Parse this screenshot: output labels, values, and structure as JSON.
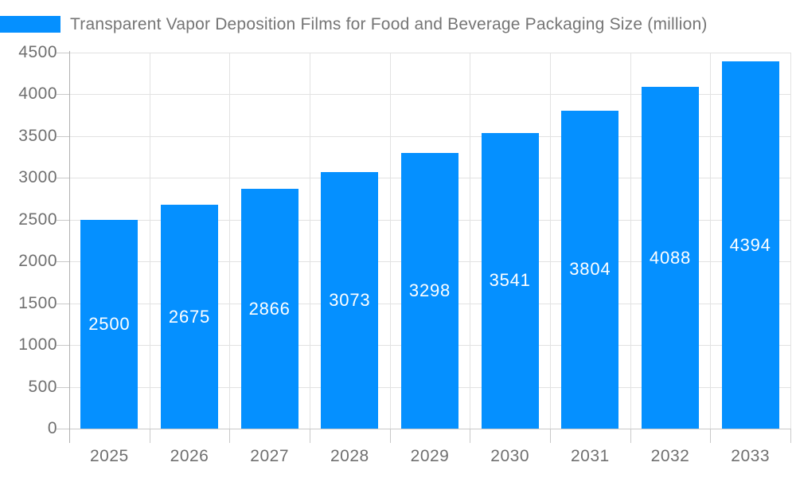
{
  "legend": {
    "label": "Transparent Vapor Deposition Films for Food and Beverage Packaging Size (million)",
    "position": "top-left"
  },
  "chart_data": {
    "type": "bar",
    "title": "Transparent Vapor Deposition Films for Food and Beverage Packaging Size (million)",
    "series_name": "Transparent Vapor Deposition Films for Food and Beverage Packaging Size (million)",
    "categories": [
      "2025",
      "2026",
      "2027",
      "2028",
      "2029",
      "2030",
      "2031",
      "2032",
      "2033"
    ],
    "values": [
      2500,
      2675,
      2866,
      3073,
      3298,
      3541,
      3804,
      4088,
      4394
    ],
    "value_labels": [
      "2500",
      "2675",
      "2866",
      "3073",
      "3298",
      "3541",
      "3804",
      "4088",
      "4394"
    ],
    "xlabel": "",
    "ylabel": "",
    "ylim": [
      0,
      4500
    ],
    "y_tick_step": 500,
    "y_tick_labels": [
      "0",
      "500",
      "1000",
      "1500",
      "2000",
      "2500",
      "3000",
      "3500",
      "4000",
      "4500"
    ],
    "grid": true,
    "legend_position": "top-left"
  },
  "colors": {
    "bar": "#0590ff",
    "grid": "#e2e2e2",
    "axis": "#b1b1b1",
    "tick": "#c9c9c9",
    "axis_text": "#6f6f6f",
    "title_text": "#757575",
    "value_text": "#ffffff",
    "background": "#ffffff"
  }
}
